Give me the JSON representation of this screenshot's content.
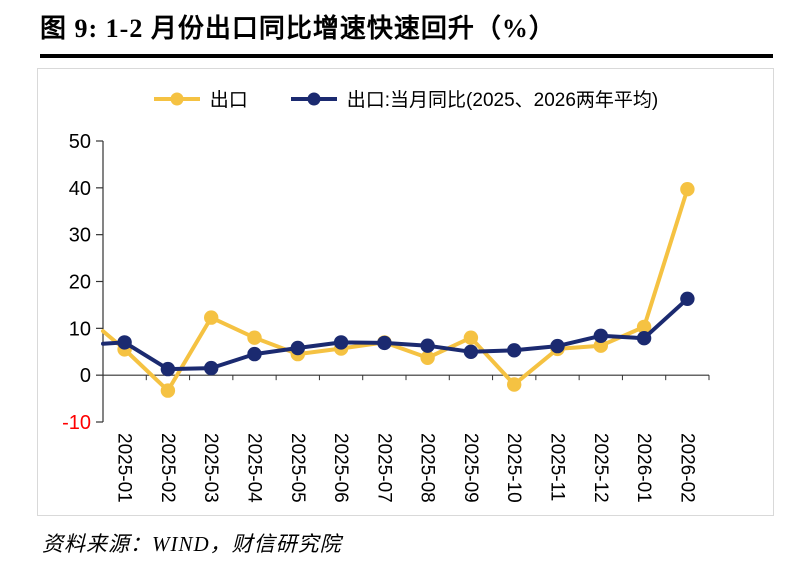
{
  "page": {
    "title": "图 9: 1-2 月份出口同比增速快速回升（%）",
    "source": "资料来源：WIND，财信研究院"
  },
  "colors": {
    "export_series": "#F5C242",
    "average_series": "#1B2A70",
    "negative_tick": "#FF0000",
    "axis": "#333333",
    "chart_border": "#D9D9D9"
  },
  "chart_data": {
    "type": "line",
    "categories": [
      "2025-01",
      "2025-02",
      "2025-03",
      "2025-04",
      "2025-05",
      "2025-06",
      "2025-07",
      "2025-08",
      "2025-09",
      "2025-10",
      "2025-11",
      "2025-12",
      "2026-01",
      "2026-02"
    ],
    "series": [
      {
        "name": "出口",
        "color": "#F5C242",
        "values": [
          5.5,
          -3.3,
          12.3,
          8.0,
          4.5,
          5.7,
          7.0,
          3.7,
          8.0,
          -2.0,
          5.6,
          6.3,
          10.3,
          39.7
        ],
        "left_edge_clip_value": 9.4
      },
      {
        "name": "出口:当月同比(2025、2026两年平均)",
        "color": "#1B2A70",
        "values": [
          7.0,
          1.3,
          1.5,
          4.5,
          5.8,
          7.0,
          6.9,
          6.3,
          5.0,
          5.3,
          6.2,
          8.4,
          7.9,
          16.3
        ],
        "left_edge_clip_value": 6.7
      }
    ],
    "ylim": [
      -10,
      50
    ],
    "yticks": [
      {
        "label": "50",
        "value": 50
      },
      {
        "label": "40",
        "value": 40
      },
      {
        "label": "30",
        "value": 30
      },
      {
        "label": "20",
        "value": 20
      },
      {
        "label": "10",
        "value": 10
      },
      {
        "label": "0",
        "value": 0
      },
      {
        "label": "-10",
        "value": -10,
        "color": "#FF0000"
      }
    ],
    "grid": false,
    "legend_position": "top",
    "x_label_rotation_deg": 90
  }
}
